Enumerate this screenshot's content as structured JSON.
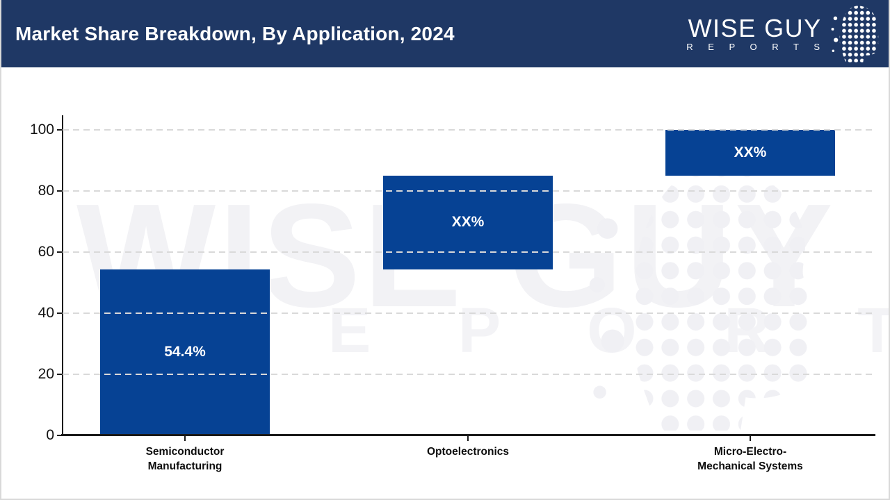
{
  "header": {
    "title": "Market Share Breakdown, By Application, 2024",
    "logo": {
      "line1": "WISE GUY",
      "line2": "R E P O R T S"
    }
  },
  "watermark": {
    "line1": "WISE GUY",
    "line2": "R E P O R T S"
  },
  "colors": {
    "header_bg": "#1f3865",
    "bar_blue": "#064294",
    "gridline": "#d9d9d9",
    "axis": "#1a1a1a",
    "frame": "#d9d9d9",
    "watermark": "#f2f2f5"
  },
  "chart_data": {
    "type": "bar",
    "subtype": "floating-waterfall",
    "title": "Market Share Breakdown, By Application, 2024",
    "categories": [
      "Semiconductor Manufacturing",
      "Optoelectronics",
      "Micro-Electro-Mechanical Systems"
    ],
    "category_label_lines": [
      [
        "Semiconductor",
        "Manufacturing"
      ],
      [
        "Optoelectronics"
      ],
      [
        "Micro-Electro-",
        "Mechanical Systems"
      ]
    ],
    "segments": [
      {
        "category": "Semiconductor Manufacturing",
        "start": 0,
        "end": 54.4,
        "label": "54.4%"
      },
      {
        "category": "Optoelectronics",
        "start": 54.4,
        "end": 85,
        "label": "XX%"
      },
      {
        "category": "Micro-Electro-Mechanical Systems",
        "start": 85,
        "end": 100,
        "label": "XX%"
      }
    ],
    "bar_color": "#064294",
    "ylabel": "",
    "xlabel": "",
    "ylim": [
      0,
      100
    ],
    "yticks": [
      0,
      20,
      40,
      60,
      80,
      100
    ],
    "grid": "horizontal-dashed",
    "legend": "none"
  }
}
